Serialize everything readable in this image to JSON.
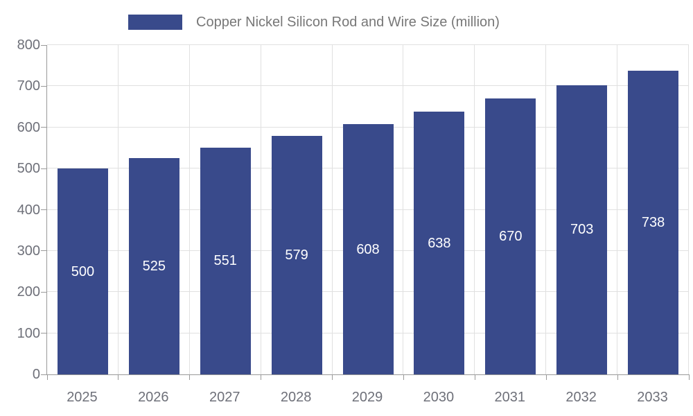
{
  "legend": {
    "series_label": "Copper Nickel Silicon Rod and Wire Size (million)"
  },
  "chart_data": {
    "type": "bar",
    "title": "Copper Nickel Silicon Rod and Wire Size (million)",
    "categories": [
      "2025",
      "2026",
      "2027",
      "2028",
      "2029",
      "2030",
      "2031",
      "2032",
      "2033"
    ],
    "values": [
      500,
      525,
      551,
      579,
      608,
      638,
      670,
      703,
      738
    ],
    "xlabel": "",
    "ylabel": "",
    "ylim": [
      0,
      800
    ],
    "ytick_interval": 100,
    "ytick_labels": [
      "0",
      "100",
      "200",
      "300",
      "400",
      "500",
      "600",
      "700",
      "800"
    ],
    "grid": true,
    "legend_position": "top",
    "bar_labels_inside": true,
    "colors": {
      "bar": "#394a8b",
      "bar_label": "#ffffff",
      "axis_label": "#6e7079",
      "axis_line": "#999999",
      "gridline": "#e0e0e0",
      "legend_text": "#777777",
      "background": "#ffffff"
    }
  }
}
